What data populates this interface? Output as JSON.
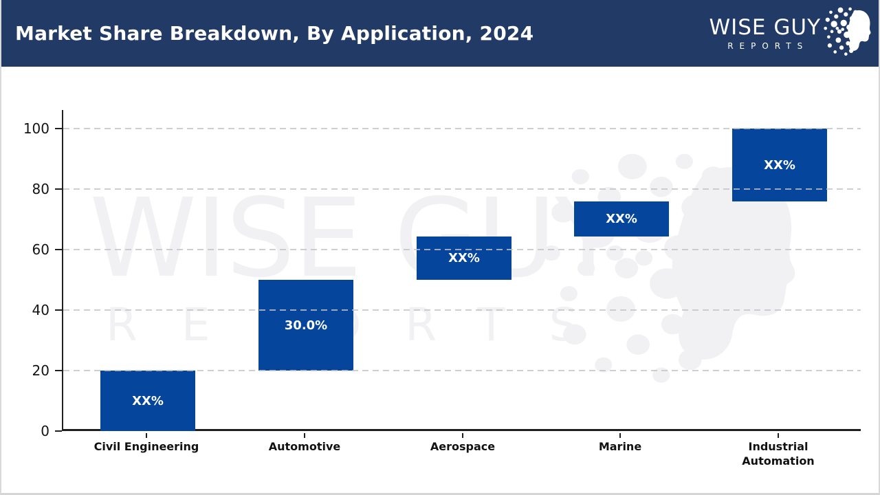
{
  "header": {
    "title": "Market Share Breakdown, By Application, 2024",
    "logo": {
      "line1": "WISE GUY",
      "line2": "REPORTS"
    }
  },
  "watermark": {
    "line1": "WISE GUY",
    "line2": "REPORTS"
  },
  "colors": {
    "header_bg": "#213A66",
    "bar_blue": "#05459C",
    "axis": "#1F1F1F",
    "gridline": "#D8D8D8",
    "watermark_gray": "#F1F1F3",
    "page_border": "#D9D9D9"
  },
  "chart_data": {
    "type": "bar",
    "subtype": "floating-waterfall",
    "title": "Market Share Breakdown, By Application, 2024",
    "categories": [
      "Civil Engineering",
      "Automotive",
      "Aerospace",
      "Marine",
      "Industrial Automation"
    ],
    "bars": [
      {
        "category": "Civil Engineering",
        "start": 0,
        "end": 20,
        "label": "XX%"
      },
      {
        "category": "Automotive",
        "start": 20,
        "end": 50,
        "label": "30.0%"
      },
      {
        "category": "Aerospace",
        "start": 50,
        "end": 64.3,
        "label": "XX%"
      },
      {
        "category": "Marine",
        "start": 64.3,
        "end": 75.8,
        "label": "XX%"
      },
      {
        "category": "Industrial Automation",
        "start": 75.8,
        "end": 100,
        "label": "XX%"
      }
    ],
    "yticks": [
      0,
      20,
      40,
      60,
      80,
      100
    ],
    "ylim": [
      0,
      106
    ],
    "xlabel": "",
    "ylabel": "",
    "legend": null,
    "grid": {
      "horizontal": true,
      "style": "dashed",
      "drawn_over_bars": true
    },
    "bar_color": "#05459C",
    "bar_label_color": "#FFFFFF"
  }
}
